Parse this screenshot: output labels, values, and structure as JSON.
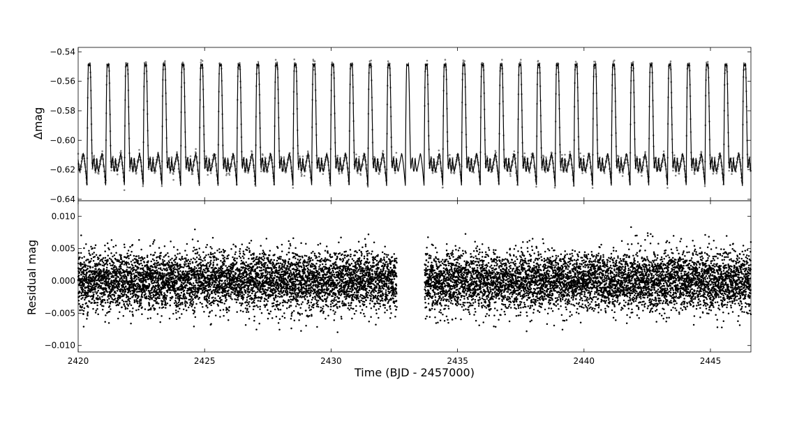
{
  "chart_data": [
    {
      "type": "scatter",
      "panel": "top",
      "xlabel": "",
      "ylabel": "Δmag",
      "xlim": [
        2420,
        2446.6
      ],
      "ylim": [
        -0.641,
        -0.537
      ],
      "y_inverted": false,
      "grid": false,
      "y_ticks": [
        -0.54,
        -0.56,
        -0.58,
        -0.6,
        -0.62,
        -0.64
      ],
      "y_tick_labels": [
        "−0.54",
        "−0.56",
        "−0.58",
        "−0.60",
        "−0.62",
        "−0.64"
      ],
      "series": [
        {
          "kind": "observed-points",
          "color": "#808080",
          "gap": [
            2432.6,
            2433.7
          ]
        },
        {
          "kind": "model-line",
          "color": "#000000"
        }
      ],
      "light_curve": {
        "period_days": 0.7404,
        "first_minimum": 2420.35,
        "maximum_mag": -0.548,
        "minimum_mag": -0.631,
        "baseline_mag": -0.615,
        "secondary_dip_mag": -0.621
      }
    },
    {
      "type": "scatter",
      "panel": "bottom",
      "xlabel": "Time (BJD - 2457000)",
      "ylabel": "Residual mag",
      "xlim": [
        2420,
        2446.6
      ],
      "ylim": [
        -0.011,
        0.0124
      ],
      "grid": false,
      "x_ticks": [
        2420,
        2425,
        2430,
        2435,
        2440,
        2445
      ],
      "x_tick_labels": [
        "2420",
        "2425",
        "2430",
        "2435",
        "2440",
        "2445"
      ],
      "y_ticks": [
        0.01,
        0.005,
        0.0,
        -0.005,
        -0.01
      ],
      "y_tick_labels": [
        "0.010",
        "0.005",
        "0.000",
        "−0.005",
        "−0.010"
      ],
      "series": [
        {
          "kind": "residual-points",
          "color": "#000000",
          "center": 0.0,
          "scatter_sigma": 0.0022,
          "gap": [
            2432.6,
            2433.7
          ]
        }
      ]
    }
  ]
}
